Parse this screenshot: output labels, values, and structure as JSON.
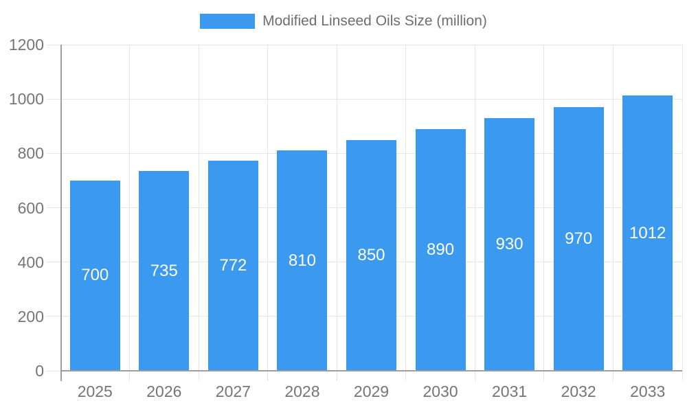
{
  "legend": {
    "label": "Modified Linseed Oils Size (million)",
    "swatch_color": "#3b99f0"
  },
  "chart_data": {
    "type": "bar",
    "title": "Modified Linseed Oils Size (million)",
    "series_name": "Modified Linseed Oils Size (million)",
    "categories": [
      "2025",
      "2026",
      "2027",
      "2028",
      "2029",
      "2030",
      "2031",
      "2032",
      "2033"
    ],
    "values": [
      700,
      735,
      772,
      810,
      850,
      890,
      930,
      970,
      1012
    ],
    "xlabel": "",
    "ylabel": "",
    "ylim": [
      0,
      1200
    ],
    "yticks": [
      0,
      200,
      400,
      600,
      800,
      1000,
      1200
    ],
    "grid": true,
    "legend_position": "top",
    "colors": {
      "bar": "#3b99f0",
      "bar_value_text": "#ffffff",
      "grid_line": "#e6e6e6",
      "axis_line": "#9e9e9e",
      "axis_text": "#757575",
      "background": "#ffffff"
    }
  }
}
